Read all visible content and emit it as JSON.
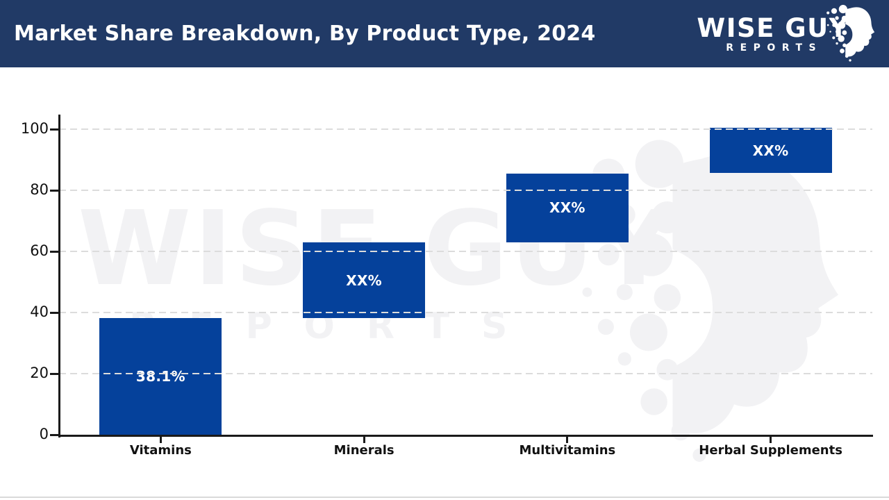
{
  "header": {
    "title": "Market Share Breakdown, By Product Type, 2024",
    "background": "#213a66"
  },
  "brand": {
    "line1": "WISE GUY",
    "line2": "REPORTS"
  },
  "watermark": {
    "line1": "WISE GUY",
    "line2": "REPORTS"
  },
  "colors": {
    "bar": "#05419b",
    "value_label": "#ffffff",
    "grid": "#dcdcdc",
    "axis": "#1a1a1a",
    "watermark": "#f2f2f4"
  },
  "chart_data": {
    "type": "bar",
    "subtype": "waterfall",
    "title": "Market Share Breakdown, By Product Type, 2024",
    "xlabel": "",
    "ylabel": "",
    "categories": [
      "Vitamins",
      "Minerals",
      "Multivitamins",
      "Herbal Supplements"
    ],
    "segments": [
      {
        "category": "Vitamins",
        "start": 0,
        "end": 38.1,
        "label": "38.1%"
      },
      {
        "category": "Minerals",
        "start": 38.1,
        "end": 63.0,
        "label": "XX%"
      },
      {
        "category": "Multivitamins",
        "start": 63.0,
        "end": 85.5,
        "label": "XX%"
      },
      {
        "category": "Herbal Supplements",
        "start": 85.7,
        "end": 100.4,
        "label": "XX%"
      }
    ],
    "ylim": [
      0,
      105
    ],
    "yticks": [
      0,
      20,
      40,
      60,
      80,
      100
    ],
    "grid": "horizontal-dashed",
    "gridlines_over_bars": true,
    "legend": "none",
    "bar_color": "#05419b",
    "value_label_color": "#ffffff"
  }
}
